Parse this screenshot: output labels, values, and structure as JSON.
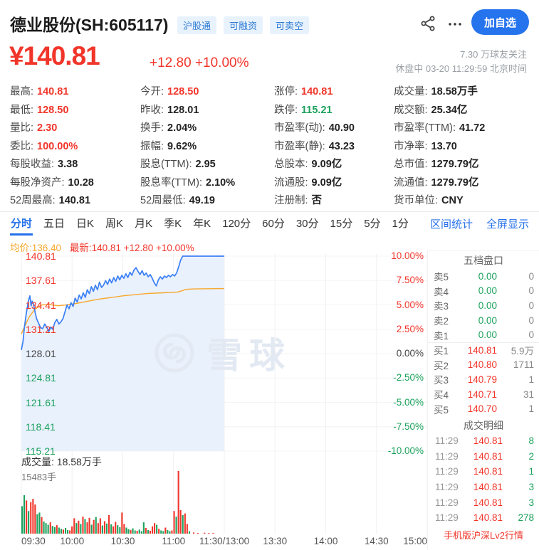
{
  "colors": {
    "red": "#f1352a",
    "green": "#1ba15c",
    "accent": "#2673ee",
    "linkblue": "#2470e8",
    "tagtext": "#2f7cd4",
    "tagbg": "#e8f2fc",
    "orange": "#f7a82d",
    "lineblue": "#3a7ff5",
    "fill": "#e9f1fd",
    "watermark": "#e3e9f2"
  },
  "header": {
    "title": "德业股份(SH:605117)",
    "tags": [
      "沪股通",
      "可融资",
      "可卖空"
    ],
    "share_icon": "share-icon",
    "more_icon": "ellipsis-icon",
    "follow_button": "加自选"
  },
  "quote": {
    "price": "¥140.81",
    "change": "+12.80",
    "change_pct": "+10.00%",
    "followers": "7.30 万球友关注",
    "status_line": "休盘中 03-20 11:29:59 北京时间"
  },
  "stats": {
    "rows": [
      [
        {
          "l": "最高:",
          "v": "140.81",
          "c": "r"
        },
        {
          "l": "今开:",
          "v": "128.50",
          "c": "r"
        },
        {
          "l": "涨停:",
          "v": "140.81",
          "c": "r"
        },
        {
          "l": "成交量:",
          "v": "18.58万手"
        }
      ],
      [
        {
          "l": "最低:",
          "v": "128.50",
          "c": "r"
        },
        {
          "l": "昨收:",
          "v": "128.01"
        },
        {
          "l": "跌停:",
          "v": "115.21",
          "c": "g"
        },
        {
          "l": "成交额:",
          "v": "25.34亿"
        }
      ],
      [
        {
          "l": "量比:",
          "v": "2.30",
          "c": "r"
        },
        {
          "l": "换手:",
          "v": "2.04%"
        },
        {
          "l": "市盈率(动):",
          "v": "40.90"
        },
        {
          "l": "市盈率(TTM):",
          "v": "41.72"
        }
      ],
      [
        {
          "l": "委比:",
          "v": "100.00%",
          "c": "r"
        },
        {
          "l": "振幅:",
          "v": "9.62%"
        },
        {
          "l": "市盈率(静):",
          "v": "43.23"
        },
        {
          "l": "市净率:",
          "v": "13.70"
        }
      ],
      [
        {
          "l": "每股收益:",
          "v": "3.38"
        },
        {
          "l": "股息(TTM):",
          "v": "2.95"
        },
        {
          "l": "总股本:",
          "v": "9.09亿"
        },
        {
          "l": "总市值:",
          "v": "1279.79亿"
        }
      ],
      [
        {
          "l": "每股净资产:",
          "v": "10.28"
        },
        {
          "l": "股息率(TTM):",
          "v": "2.10%"
        },
        {
          "l": "流通股:",
          "v": "9.09亿"
        },
        {
          "l": "流通值:",
          "v": "1279.79亿"
        }
      ],
      [
        {
          "l": "52周最高:",
          "v": "140.81"
        },
        {
          "l": "52周最低:",
          "v": "49.19"
        },
        {
          "l": "注册制:",
          "v": "否"
        },
        {
          "l": "货币单位:",
          "v": "CNY"
        }
      ]
    ]
  },
  "tabs": {
    "items": [
      "分时",
      "五日",
      "日K",
      "周K",
      "月K",
      "季K",
      "年K",
      "120分",
      "60分",
      "30分",
      "15分",
      "5分",
      "1分"
    ],
    "active": 0,
    "links": [
      "区间统计",
      "全屏显示"
    ]
  },
  "watermark": {
    "text": "雪球"
  },
  "chart_data": {
    "type": "line",
    "title": "分时图 (intraday)",
    "legend": {
      "avg": "均价:136.40",
      "last": "最新:140.81 +12.80 +10.00%"
    },
    "x_labels": [
      "09:30",
      "10:00",
      "10:30",
      "11:00",
      "11:30/13:00",
      "13:30",
      "14:00",
      "14:30",
      "15:00"
    ],
    "y_labels_price": [
      "140.81",
      "137.61",
      "134.41",
      "131.21",
      "128.01",
      "124.81",
      "121.61",
      "118.41",
      "115.21"
    ],
    "y_labels_pct": [
      "10.00%",
      "7.50%",
      "5.00%",
      "2.50%",
      "0.00%",
      "-2.50%",
      "-5.00%",
      "-7.50%",
      "-10.00%"
    ],
    "price_range": [
      115.21,
      140.81
    ],
    "prev_close": 128.01,
    "grid": true,
    "price_series": [
      [
        0,
        128.5
      ],
      [
        0.008,
        129.6
      ],
      [
        0.015,
        131.5
      ],
      [
        0.025,
        133.4
      ],
      [
        0.035,
        135.0
      ],
      [
        0.042,
        135.6
      ],
      [
        0.048,
        134.3
      ],
      [
        0.053,
        134.9
      ],
      [
        0.06,
        134.5
      ],
      [
        0.068,
        133.4
      ],
      [
        0.075,
        132.6
      ],
      [
        0.085,
        132.0
      ],
      [
        0.095,
        131.4
      ],
      [
        0.105,
        131.3
      ],
      [
        0.115,
        131.9
      ],
      [
        0.125,
        131.5
      ],
      [
        0.135,
        130.9
      ],
      [
        0.145,
        131.5
      ],
      [
        0.155,
        131.2
      ],
      [
        0.165,
        132.1
      ],
      [
        0.175,
        132.5
      ],
      [
        0.185,
        131.9
      ],
      [
        0.195,
        132.2
      ],
      [
        0.205,
        132.6
      ],
      [
        0.215,
        133.5
      ],
      [
        0.225,
        134.4
      ],
      [
        0.235,
        133.9
      ],
      [
        0.245,
        134.7
      ],
      [
        0.255,
        134.2
      ],
      [
        0.265,
        135.3
      ],
      [
        0.275,
        134.8
      ],
      [
        0.285,
        135.7
      ],
      [
        0.295,
        135.2
      ],
      [
        0.305,
        136.0
      ],
      [
        0.315,
        135.4
      ],
      [
        0.325,
        136.4
      ],
      [
        0.335,
        135.9
      ],
      [
        0.345,
        136.8
      ],
      [
        0.355,
        136.2
      ],
      [
        0.365,
        137.0
      ],
      [
        0.375,
        136.4
      ],
      [
        0.385,
        137.4
      ],
      [
        0.395,
        136.7
      ],
      [
        0.405,
        137.0
      ],
      [
        0.415,
        137.6
      ],
      [
        0.425,
        137.1
      ],
      [
        0.435,
        137.8
      ],
      [
        0.445,
        137.3
      ],
      [
        0.455,
        138.0
      ],
      [
        0.465,
        137.5
      ],
      [
        0.475,
        138.2
      ],
      [
        0.485,
        137.7
      ],
      [
        0.495,
        138.3
      ],
      [
        0.505,
        137.9
      ],
      [
        0.515,
        138.5
      ],
      [
        0.525,
        138.0
      ],
      [
        0.535,
        138.7
      ],
      [
        0.545,
        138.3
      ],
      [
        0.555,
        139.0
      ],
      [
        0.565,
        139.3
      ],
      [
        0.575,
        138.8
      ],
      [
        0.585,
        138.4
      ],
      [
        0.595,
        138.9
      ],
      [
        0.605,
        138.3
      ],
      [
        0.615,
        138.6
      ],
      [
        0.625,
        138.1
      ],
      [
        0.635,
        138.4
      ],
      [
        0.645,
        137.9
      ],
      [
        0.655,
        137.3
      ],
      [
        0.665,
        136.9
      ],
      [
        0.675,
        137.7
      ],
      [
        0.685,
        138.1
      ],
      [
        0.695,
        137.8
      ],
      [
        0.705,
        138.2
      ],
      [
        0.715,
        138.0
      ],
      [
        0.725,
        138.3
      ],
      [
        0.735,
        138.1
      ],
      [
        0.745,
        138.4
      ],
      [
        0.755,
        138.2
      ],
      [
        0.765,
        138.6
      ],
      [
        0.775,
        139.4
      ],
      [
        0.785,
        140.3
      ],
      [
        0.795,
        140.81
      ],
      [
        1,
        140.81
      ]
    ],
    "avg_series": [
      [
        0,
        130.6
      ],
      [
        0.02,
        131.8
      ],
      [
        0.04,
        132.9
      ],
      [
        0.06,
        133.6
      ],
      [
        0.08,
        134.1
      ],
      [
        0.1,
        134.4
      ],
      [
        0.14,
        134.45
      ],
      [
        0.18,
        134.3
      ],
      [
        0.22,
        134.4
      ],
      [
        0.26,
        134.55
      ],
      [
        0.3,
        134.75
      ],
      [
        0.34,
        134.95
      ],
      [
        0.38,
        135.15
      ],
      [
        0.42,
        135.3
      ],
      [
        0.46,
        135.45
      ],
      [
        0.5,
        135.6
      ],
      [
        0.54,
        135.7
      ],
      [
        0.58,
        135.8
      ],
      [
        0.62,
        135.9
      ],
      [
        0.66,
        135.95
      ],
      [
        0.7,
        136.0
      ],
      [
        0.74,
        136.05
      ],
      [
        0.77,
        136.1
      ],
      [
        0.79,
        136.25
      ],
      [
        0.81,
        136.45
      ],
      [
        0.85,
        136.5
      ],
      [
        1,
        136.55
      ]
    ],
    "volume_label": "成交量: 18.58万手",
    "volume_scale_label": "15483手",
    "volume_max": 15483,
    "volume_bars": [
      [
        0,
        6800,
        "g"
      ],
      [
        1,
        9500,
        "g"
      ],
      [
        2,
        8200,
        "r"
      ],
      [
        3,
        5600,
        "g"
      ],
      [
        4,
        7800,
        "r"
      ],
      [
        5,
        8600,
        "r"
      ],
      [
        6,
        7200,
        "r"
      ],
      [
        7,
        4800,
        "g"
      ],
      [
        8,
        5200,
        "g"
      ],
      [
        9,
        4100,
        "r"
      ],
      [
        10,
        3000,
        "g"
      ],
      [
        11,
        2600,
        "g"
      ],
      [
        12,
        2200,
        "g"
      ],
      [
        13,
        2800,
        "r"
      ],
      [
        14,
        1900,
        "g"
      ],
      [
        15,
        1600,
        "g"
      ],
      [
        16,
        2100,
        "r"
      ],
      [
        17,
        1500,
        "g"
      ],
      [
        18,
        1200,
        "g"
      ],
      [
        19,
        1000,
        "r"
      ],
      [
        20,
        1400,
        "g"
      ],
      [
        21,
        900,
        "g"
      ],
      [
        22,
        800,
        "r"
      ],
      [
        23,
        1800,
        "r"
      ],
      [
        24,
        3800,
        "r"
      ],
      [
        25,
        2600,
        "g"
      ],
      [
        26,
        3200,
        "r"
      ],
      [
        27,
        2400,
        "g"
      ],
      [
        28,
        4200,
        "r"
      ],
      [
        29,
        3600,
        "g"
      ],
      [
        30,
        2800,
        "r"
      ],
      [
        31,
        3900,
        "r"
      ],
      [
        32,
        2200,
        "g"
      ],
      [
        33,
        3400,
        "r"
      ],
      [
        34,
        4100,
        "g"
      ],
      [
        35,
        2600,
        "r"
      ],
      [
        36,
        3800,
        "r"
      ],
      [
        37,
        2000,
        "g"
      ],
      [
        38,
        3100,
        "r"
      ],
      [
        39,
        2500,
        "g"
      ],
      [
        40,
        4600,
        "r"
      ],
      [
        41,
        2300,
        "g"
      ],
      [
        42,
        1800,
        "r"
      ],
      [
        43,
        2900,
        "r"
      ],
      [
        44,
        2100,
        "g"
      ],
      [
        45,
        1600,
        "g"
      ],
      [
        46,
        5200,
        "r"
      ],
      [
        47,
        2400,
        "r"
      ],
      [
        48,
        1500,
        "g"
      ],
      [
        49,
        1100,
        "g"
      ],
      [
        50,
        900,
        "r"
      ],
      [
        51,
        1300,
        "g"
      ],
      [
        52,
        800,
        "g"
      ],
      [
        53,
        700,
        "r"
      ],
      [
        54,
        1000,
        "g"
      ],
      [
        55,
        600,
        "g"
      ],
      [
        56,
        2800,
        "g"
      ],
      [
        57,
        1400,
        "r"
      ],
      [
        58,
        900,
        "g"
      ],
      [
        59,
        700,
        "r"
      ],
      [
        60,
        1800,
        "r"
      ],
      [
        61,
        2600,
        "r"
      ],
      [
        62,
        2200,
        "g"
      ],
      [
        63,
        1200,
        "r"
      ],
      [
        64,
        800,
        "g"
      ],
      [
        65,
        600,
        "g"
      ],
      [
        66,
        1500,
        "r"
      ],
      [
        67,
        900,
        "g"
      ],
      [
        68,
        600,
        "g"
      ],
      [
        69,
        800,
        "r"
      ],
      [
        70,
        5600,
        "r"
      ],
      [
        71,
        4200,
        "g"
      ],
      [
        72,
        15483,
        "r"
      ],
      [
        73,
        5800,
        "r"
      ],
      [
        74,
        4600,
        "g"
      ],
      [
        75,
        5000,
        "r"
      ],
      [
        76,
        2400,
        "r"
      ],
      [
        77,
        600,
        "g"
      ],
      [
        79,
        300,
        "r"
      ],
      [
        81,
        160,
        "r"
      ],
      [
        84,
        220,
        "r"
      ],
      [
        86,
        130,
        "r"
      ],
      [
        88,
        100,
        "r"
      ]
    ]
  },
  "order_book": {
    "title": "五档盘口",
    "asks": [
      {
        "label": "卖5",
        "price": "0.00",
        "vol": "0"
      },
      {
        "label": "卖4",
        "price": "0.00",
        "vol": "0"
      },
      {
        "label": "卖3",
        "price": "0.00",
        "vol": "0"
      },
      {
        "label": "卖2",
        "price": "0.00",
        "vol": "0"
      },
      {
        "label": "卖1",
        "price": "0.00",
        "vol": "0"
      }
    ],
    "bids": [
      {
        "label": "买1",
        "price": "140.81",
        "vol": "5.9万"
      },
      {
        "label": "买2",
        "price": "140.80",
        "vol": "1711"
      },
      {
        "label": "买3",
        "price": "140.79",
        "vol": "1"
      },
      {
        "label": "买4",
        "price": "140.71",
        "vol": "31"
      },
      {
        "label": "买5",
        "price": "140.70",
        "vol": "1"
      }
    ]
  },
  "trade_log": {
    "title": "成交明细",
    "rows": [
      {
        "time": "11:29",
        "price": "140.81",
        "vol": "8"
      },
      {
        "time": "11:29",
        "price": "140.81",
        "vol": "2"
      },
      {
        "time": "11:29",
        "price": "140.81",
        "vol": "1"
      },
      {
        "time": "11:29",
        "price": "140.81",
        "vol": "3"
      },
      {
        "time": "11:29",
        "price": "140.81",
        "vol": "3"
      },
      {
        "time": "11:29",
        "price": "140.81",
        "vol": "278"
      }
    ],
    "link": "手机版沪深Lv2行情"
  }
}
